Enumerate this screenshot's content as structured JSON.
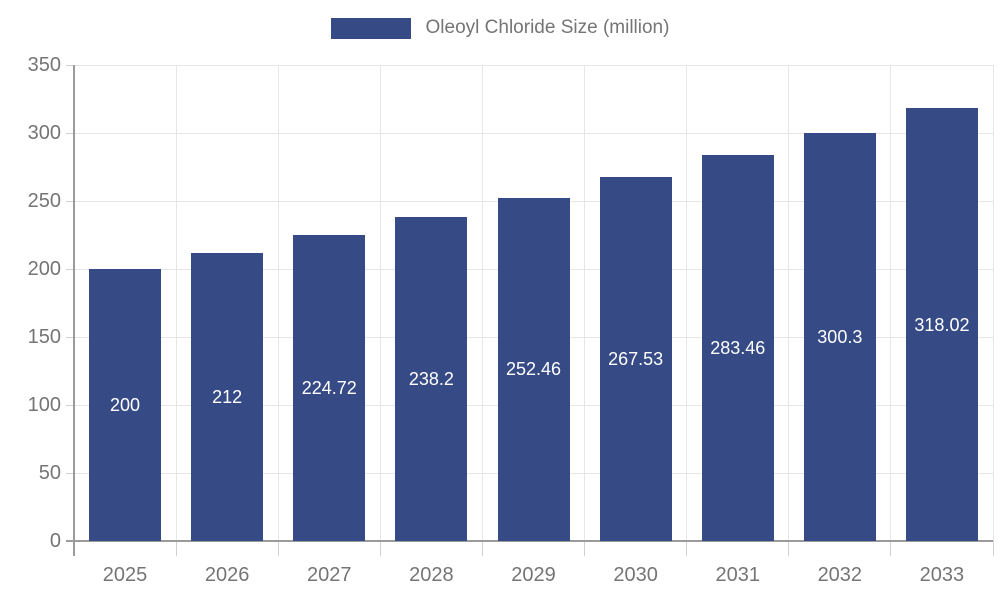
{
  "legend": {
    "label": "Oleoyl Chloride Size (million)"
  },
  "chart_data": {
    "type": "bar",
    "title": "Oleoyl Chloride Size (million)",
    "legend_position": "top",
    "categories": [
      "2025",
      "2026",
      "2027",
      "2028",
      "2029",
      "2030",
      "2031",
      "2032",
      "2033"
    ],
    "values": [
      200,
      212,
      224.72,
      238.2,
      252.46,
      267.53,
      283.46,
      300.3,
      318.02
    ],
    "value_labels": [
      "200",
      "212",
      "224.72",
      "238.2",
      "252.46",
      "267.53",
      "283.46",
      "300.3",
      "318.02"
    ],
    "xlabel": "",
    "ylabel": "",
    "ylim": [
      0,
      350
    ],
    "ytick_step": 50,
    "grid": true,
    "colors": {
      "bar": "#364a85",
      "grid": "#e6e6e6",
      "axis_line": "#9b9b9b",
      "tick": "#d0d0d0",
      "tick_text": "#757575",
      "value_label": "#ffffff",
      "background": "#ffffff"
    }
  }
}
